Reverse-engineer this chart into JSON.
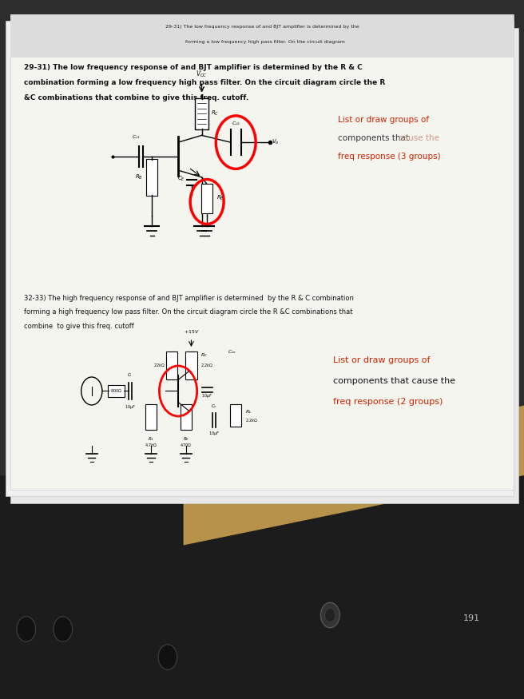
{
  "header_line1": "29-31) The low frequency response of and BJT amplifier is determined by the R & C",
  "header_line2": "combination forming a low frequency high pass filter. On the circuit diagram circle the R",
  "header_line3": "&C combinations that combine to give this freq. cutoff.",
  "top_strip_line1": "29-31) The low frequency response of and BJT amplifier is determined by the",
  "top_strip_line2": "    forming a low frequency high pass filter. On the circuit diagram",
  "section2_line1": "32-33) The high frequency response of and BJT amplifier is determined  by the R & C combination",
  "section2_line2": "forming a high frequency low pass filter. On the circuit diagram circle the R &C combinations that",
  "section2_line3": "combine  to give this freq. cutoff",
  "list1_line1": "List or draw groups of",
  "list1_line2a": "components that ",
  "list1_line2b": "cause the",
  "list1_line3": "freq response (3 groups)",
  "list2_line1": "List or draw groups of",
  "list2_line2": "components that cause the",
  "list2_line3": "freq response (2 groups)",
  "paper_color": "#f5f5f0",
  "paper_color2": "#ebebeb",
  "dark_bg": "#2d2d2d",
  "desk_color": "#1a1a1a",
  "text_color": "#111111",
  "red_color": "#cc2200",
  "strip_bg": "#dcdcdc",
  "tan_color": "#c8a050"
}
